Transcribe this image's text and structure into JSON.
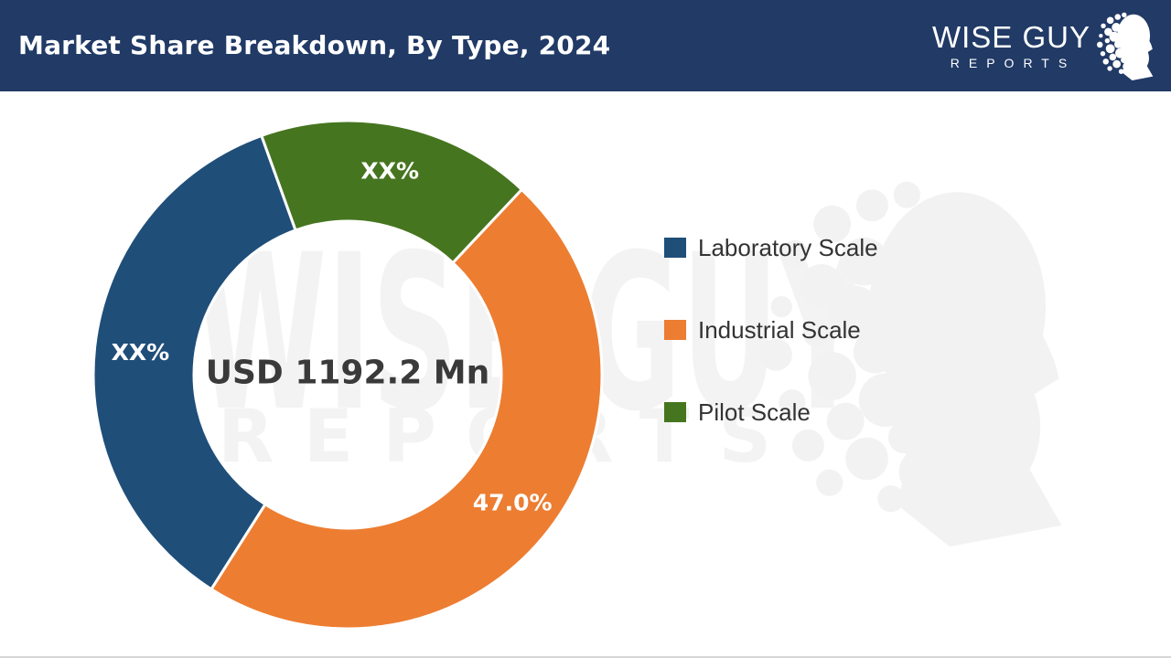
{
  "header": {
    "title": "Market Share Breakdown, By Type, 2024",
    "brand": {
      "name_line": "WISE GUY",
      "sub_line": "REPORTS"
    }
  },
  "watermark": {
    "name_line": "WISE GUY",
    "sub_line": "REPORTS"
  },
  "chart_data": {
    "type": "pie",
    "subtype": "donut",
    "title": "Market Share Breakdown, By Type, 2024",
    "center_label": "USD 1192.2 Mn",
    "legend_position": "right",
    "start_angle_deg_clockwise_from_top": -19.8,
    "direction": "counterclockwise",
    "segments": [
      {
        "label": "Laboratory Scale",
        "value_pct": 35.5,
        "display_label": "XX%",
        "color": "#1F4E79"
      },
      {
        "label": "Industrial Scale",
        "value_pct": 47.0,
        "display_label": "47.0%",
        "color": "#ED7D31"
      },
      {
        "label": "Pilot Scale",
        "value_pct": 17.5,
        "display_label": "XX%",
        "color": "#46751F"
      }
    ]
  },
  "colors": {
    "header_bg": "#213A66",
    "center_text": "#3A3A3A",
    "legend_text": "#333333",
    "watermark": "#F2F2F2",
    "bottom_line": "#D6D6D6"
  }
}
